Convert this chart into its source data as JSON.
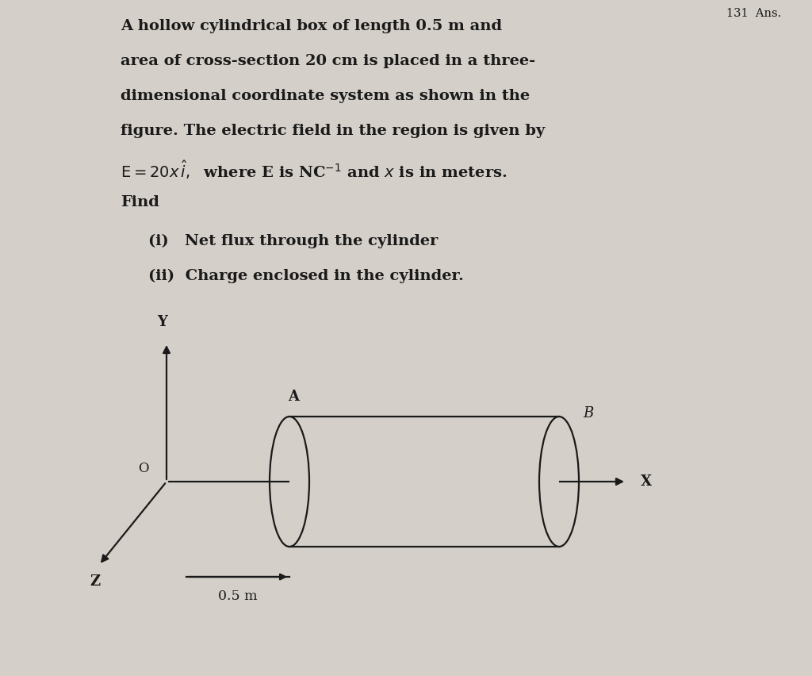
{
  "background_color": "#d4cfc8",
  "page_color": "#e8e4de",
  "text_color": "#1a1a1a",
  "cylinder_color": "#1a1a1a",
  "axis_color": "#1a1a1a",
  "fig_width": 10.24,
  "fig_height": 8.52,
  "para_lines": [
    "A hollow cylindrical box of length 0.5 m and",
    "area of cross-section 20 cm is placed in a three-",
    "dimensional coordinate system as shown in the",
    "figure. The electric field in the region is given by"
  ],
  "find_text": "Find",
  "item_i": "(i)   Net flux through the cylinder",
  "item_ii": "(ii)  Charge enclosed in the cylinder.",
  "label_ans": "Ans.",
  "label_number": "131",
  "label_A": "A",
  "label_B": "B",
  "label_X": "X",
  "label_Y": "Y",
  "label_Z": "Z",
  "label_O": "O",
  "label_length": "0.5 m"
}
